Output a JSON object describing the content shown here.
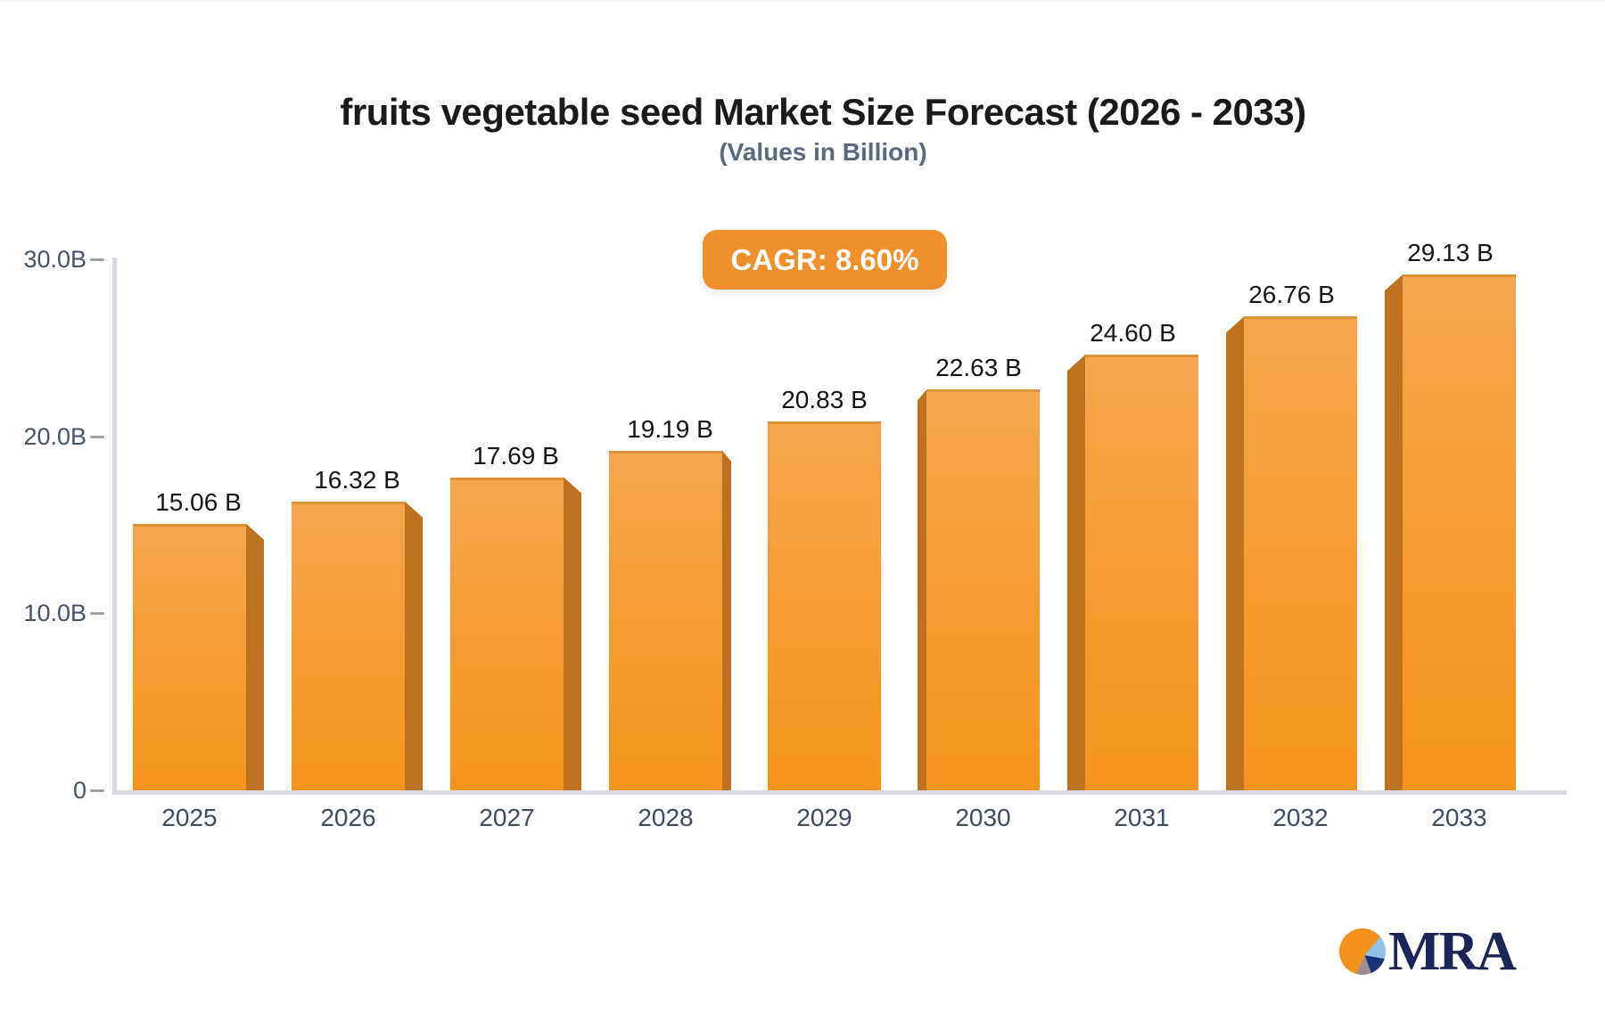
{
  "chart_data": {
    "type": "bar",
    "title": "fruits vegetable seed Market Size Forecast (2026 - 2033)",
    "subtitle": "(Values in Billion)",
    "cagr_label": "CAGR: 8.60%",
    "categories": [
      "2025",
      "2026",
      "2027",
      "2028",
      "2029",
      "2030",
      "2031",
      "2032",
      "2033"
    ],
    "values": [
      15.06,
      16.32,
      17.69,
      19.19,
      20.83,
      22.63,
      24.6,
      26.76,
      29.13
    ],
    "data_labels": [
      "15.06 B",
      "16.32 B",
      "17.69 B",
      "19.19 B",
      "20.83 B",
      "22.63 B",
      "24.60 B",
      "26.76 B",
      "29.13 B"
    ],
    "xlabel": "",
    "ylabel": "",
    "ylim": [
      0,
      30
    ],
    "yticks": [
      {
        "value": 30,
        "label": "30.0B"
      },
      {
        "value": 20,
        "label": "20.0B"
      },
      {
        "value": 10,
        "label": "10.0B"
      },
      {
        "value": 0,
        "label": "0"
      }
    ],
    "grid": false,
    "legend": false,
    "bar_style": "3d-perspective"
  },
  "logo": {
    "text": "MRA"
  },
  "colors": {
    "title": "#1a1a1a",
    "subtitle": "#5a6a7e",
    "badge_bg": "#f0902d",
    "bar_top": "#f5a54c",
    "bar_bottom": "#f6941e",
    "bar_edge": "#e09138",
    "bar_side": "#be7120",
    "axis_line": "#d6d9df",
    "tick": "#9ca3af",
    "axis_label": "#46536b",
    "x_label": "#3e4b60",
    "value_label": "#151515",
    "pie_orange": "#f3921d",
    "pie_blue": "#8fc3ea",
    "pie_navy": "#153578",
    "pie_gray": "#a18c8e",
    "logo_text": "#1b2558"
  }
}
